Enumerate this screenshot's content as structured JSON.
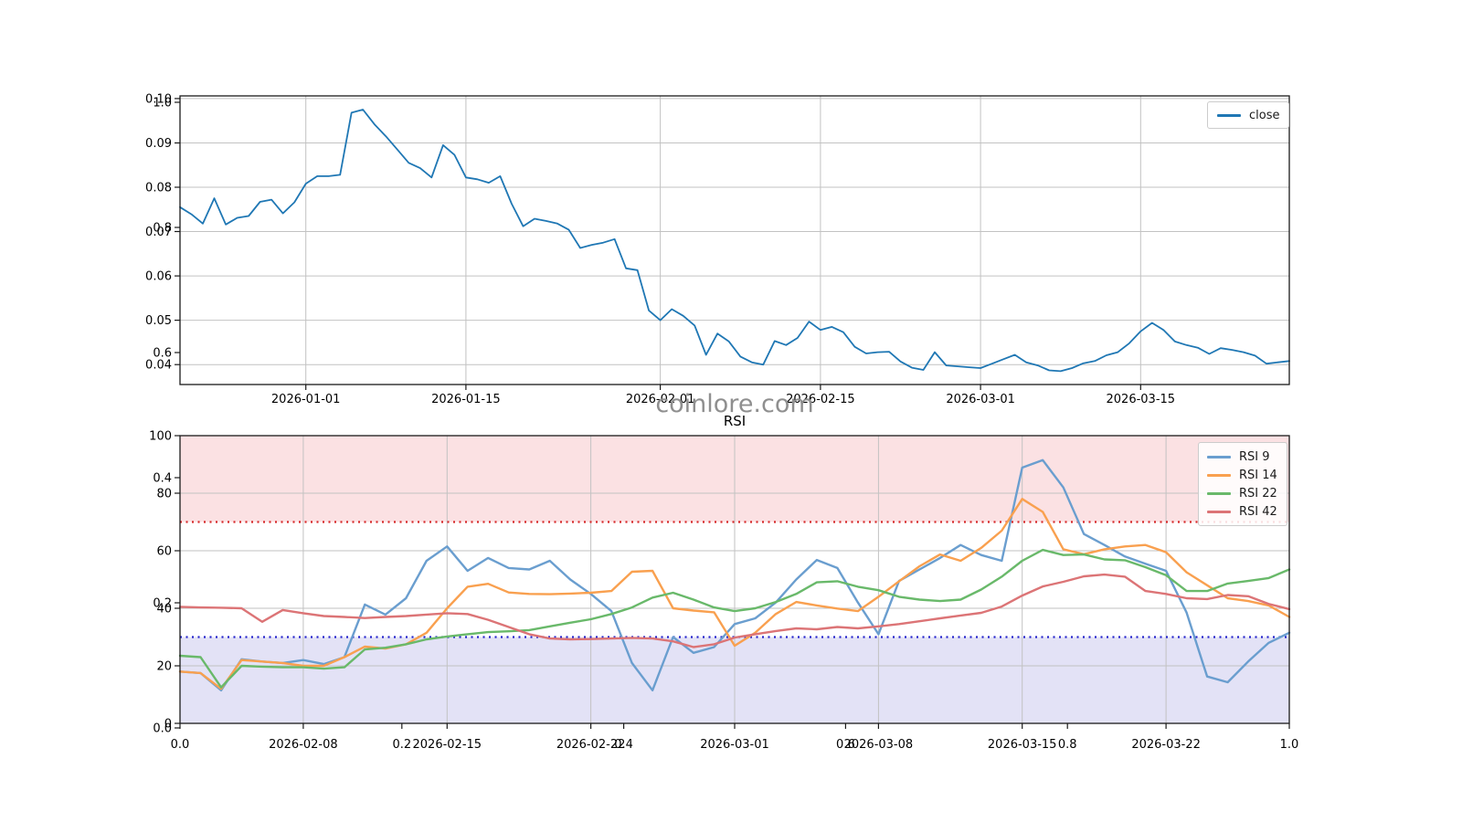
{
  "watermark": "coinlore.com",
  "figure_axis": {
    "x_ticks": [
      "0.0",
      "0.2",
      "0.4",
      "0.6",
      "0.8",
      "1.0"
    ],
    "y_ticks": [
      "1.0",
      "0.8",
      "0.6",
      "0.4",
      "0.2",
      "0.0"
    ]
  },
  "chart_data": [
    {
      "type": "line",
      "name": "price",
      "title": "",
      "legend_position": "upper right",
      "grid": true,
      "x_start": "2025-12-21",
      "x_end": "2026-03-28",
      "x_frequency": "daily",
      "x_tick_labels": [
        "2026-01-01",
        "2026-01-15",
        "2026-02-01",
        "2026-02-15",
        "2026-03-01",
        "2026-03-15"
      ],
      "x_tick_offsets": [
        11,
        25,
        42,
        56,
        70,
        84
      ],
      "y_tick_labels": [
        "0.04",
        "0.05",
        "0.06",
        "0.07",
        "0.08",
        "0.09",
        "0.10"
      ],
      "y_ticks": [
        0.04,
        0.05,
        0.06,
        0.07,
        0.08,
        0.09,
        0.1
      ],
      "ylim": [
        0.0355,
        0.1006
      ],
      "series": [
        {
          "name": "close",
          "color": "#1f77b4",
          "values": [
            0.0755,
            0.0739,
            0.0718,
            0.0775,
            0.0716,
            0.0731,
            0.0735,
            0.0767,
            0.0772,
            0.0741,
            0.0766,
            0.0808,
            0.0825,
            0.0825,
            0.0828,
            0.0968,
            0.0975,
            0.0942,
            0.0915,
            0.0885,
            0.0855,
            0.0843,
            0.0822,
            0.0895,
            0.0873,
            0.0822,
            0.0818,
            0.081,
            0.0825,
            0.0763,
            0.0712,
            0.0729,
            0.0724,
            0.0718,
            0.0704,
            0.0663,
            0.067,
            0.0675,
            0.0683,
            0.0617,
            0.0613,
            0.0522,
            0.05,
            0.0525,
            0.051,
            0.0488,
            0.0422,
            0.047,
            0.0452,
            0.0418,
            0.0405,
            0.04,
            0.0453,
            0.0444,
            0.046,
            0.0497,
            0.0478,
            0.0485,
            0.0473,
            0.044,
            0.0425,
            0.0428,
            0.0429,
            0.0407,
            0.0393,
            0.0388,
            0.0428,
            0.0398,
            0.0396,
            0.0394,
            0.0392,
            0.0402,
            0.0412,
            0.0422,
            0.0405,
            0.0398,
            0.0387,
            0.0385,
            0.0392,
            0.0403,
            0.0408,
            0.0421,
            0.0428,
            0.0448,
            0.0475,
            0.0494,
            0.0478,
            0.0452,
            0.0444,
            0.0438,
            0.0424,
            0.0437,
            0.0433,
            0.0428,
            0.042,
            0.0402,
            0.0405,
            0.0408
          ]
        }
      ]
    },
    {
      "type": "line",
      "name": "rsi",
      "title": "RSI",
      "legend_position": "upper right",
      "grid": true,
      "x_start": "2026-02-02",
      "x_end": "2026-03-28",
      "x_frequency": "daily",
      "x_tick_labels": [
        "2026-02-08",
        "2026-02-15",
        "2026-02-22",
        "2026-03-01",
        "2026-03-08",
        "2026-03-15",
        "2026-03-22"
      ],
      "x_tick_offsets": [
        6,
        13,
        20,
        27,
        34,
        41,
        48
      ],
      "y_tick_labels": [
        "0",
        "20",
        "40",
        "60",
        "80",
        "100"
      ],
      "y_ticks": [
        0,
        20,
        40,
        60,
        80,
        100
      ],
      "ylim": [
        0,
        100
      ],
      "hlines": [
        {
          "y": 70,
          "color": "#d62728",
          "style": "dotted"
        },
        {
          "y": 30,
          "color": "#2424cc",
          "style": "dotted"
        }
      ],
      "bands": [
        {
          "from": 70,
          "to": 100,
          "color": "#fbe1e3",
          "meaning": "overbought"
        },
        {
          "from": 0,
          "to": 30,
          "color": "#e3e2f6",
          "meaning": "oversold"
        }
      ],
      "series": [
        {
          "name": "RSI 9",
          "color": "#6a9ecf",
          "values": [
            18,
            17.5,
            11.5,
            22.3,
            21.5,
            21,
            22,
            20.6,
            23,
            41.3,
            37.8,
            43.5,
            56.5,
            61.5,
            53,
            57.5,
            54,
            53.5,
            56.5,
            50,
            45,
            39,
            21,
            11.5,
            30,
            24.5,
            26.5,
            34.5,
            36.5,
            42,
            50,
            56.8,
            54,
            42,
            31,
            49.5,
            53.5,
            57.5,
            62,
            58.5,
            56.5,
            88.9,
            91.5,
            82,
            65.8,
            62,
            58,
            55.5,
            53,
            38.5,
            16.3,
            14.3,
            21.5,
            28,
            31.5
          ]
        },
        {
          "name": "RSI 14",
          "color": "#f9a04f",
          "values": [
            18,
            17.5,
            12,
            22,
            21.5,
            21,
            20,
            20,
            23,
            26.7,
            26,
            27.5,
            31.5,
            40,
            47.5,
            48.5,
            45.5,
            45,
            44.9,
            45.1,
            45.4,
            46,
            52.7,
            53,
            40,
            39.2,
            38.6,
            27,
            31.5,
            38,
            42.2,
            41,
            39.9,
            39,
            44,
            49.4,
            54.6,
            58.7,
            56.5,
            61,
            67,
            78,
            73.5,
            60.5,
            58.8,
            60.5,
            61.5,
            62,
            59.5,
            52.5,
            48,
            43.5,
            42.5,
            41,
            37
          ]
        },
        {
          "name": "RSI 22",
          "color": "#69b96a",
          "values": [
            23.5,
            23,
            12.5,
            20,
            19.7,
            19.5,
            19.5,
            19,
            19.5,
            25.7,
            26.3,
            27.5,
            29.2,
            30.2,
            31,
            31.7,
            32,
            32.4,
            33.7,
            35,
            36.2,
            38,
            40.3,
            43.7,
            45.4,
            43,
            40.3,
            39,
            40,
            42.2,
            45,
            49,
            49.4,
            47.5,
            46.3,
            44,
            43,
            42.5,
            43,
            46.5,
            51,
            56.5,
            60.3,
            58.5,
            58.7,
            57,
            56.7,
            54.3,
            51.5,
            46,
            46,
            48.6,
            49.5,
            50.5,
            53.5
          ]
        },
        {
          "name": "RSI 42",
          "color": "#dc7476",
          "values": [
            40.5,
            40.3,
            40.2,
            40,
            35.3,
            39.4,
            38.3,
            37.3,
            37,
            36.6,
            37,
            37.3,
            37.8,
            38.3,
            38,
            36,
            33.5,
            31,
            29.5,
            29.2,
            29.3,
            29.5,
            29.7,
            29.5,
            28.5,
            26.5,
            27.5,
            29.8,
            31,
            32.1,
            33,
            32.7,
            33.5,
            33,
            33.7,
            34.5,
            35.5,
            36.5,
            37.5,
            38.4,
            40.6,
            44.4,
            47.6,
            49.2,
            51.1,
            51.7,
            51,
            46,
            45,
            43.5,
            43.2,
            44.6,
            44.2,
            41.5,
            39.7
          ]
        }
      ]
    }
  ]
}
